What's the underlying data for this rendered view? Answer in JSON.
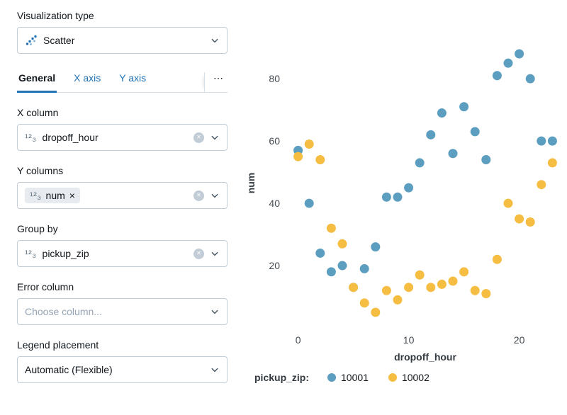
{
  "icons": {
    "number_type": "¹²₃"
  },
  "viz_type": {
    "label": "Visualization type",
    "value": "Scatter"
  },
  "tabs": [
    {
      "label": "General",
      "active": true
    },
    {
      "label": "X axis",
      "active": false
    },
    {
      "label": "Y axis",
      "active": false
    },
    {
      "label": "⋯",
      "active": false
    }
  ],
  "x_column": {
    "label": "X column",
    "value": "dropoff_hour"
  },
  "y_columns": {
    "label": "Y columns",
    "value": "num"
  },
  "group_by": {
    "label": "Group by",
    "value": "pickup_zip"
  },
  "error_column": {
    "label": "Error column",
    "placeholder": "Choose column..."
  },
  "legend_placement": {
    "label": "Legend placement",
    "value": "Automatic (Flexible)"
  },
  "chart_data": {
    "type": "scatter",
    "title": "",
    "xlabel": "dropoff_hour",
    "ylabel": "num",
    "legend_title": "pickup_zip:",
    "legend_position": "bottom",
    "grid": false,
    "xlim": [
      -1,
      24
    ],
    "ylim": [
      0,
      93
    ],
    "xticks": [
      0,
      10,
      20
    ],
    "yticks": [
      20,
      40,
      60,
      80
    ],
    "x": [
      0,
      1,
      2,
      3,
      4,
      5,
      6,
      7,
      8,
      9,
      10,
      11,
      12,
      13,
      14,
      15,
      16,
      17,
      18,
      19,
      20,
      21,
      22,
      23
    ],
    "series": [
      {
        "name": "10001",
        "color": "#5C9EBF",
        "values": [
          57,
          40,
          24,
          18,
          20,
          13,
          19,
          26,
          42,
          42,
          45,
          53,
          62,
          69,
          56,
          71,
          63,
          54,
          81,
          85,
          88,
          80,
          60,
          60
        ]
      },
      {
        "name": "10002",
        "color": "#F5BD42",
        "values": [
          55,
          59,
          54,
          32,
          27,
          13,
          8,
          5,
          12,
          9,
          13,
          17,
          13,
          14,
          15,
          18,
          12,
          11,
          22,
          40,
          35,
          34,
          46,
          53
        ]
      }
    ]
  }
}
